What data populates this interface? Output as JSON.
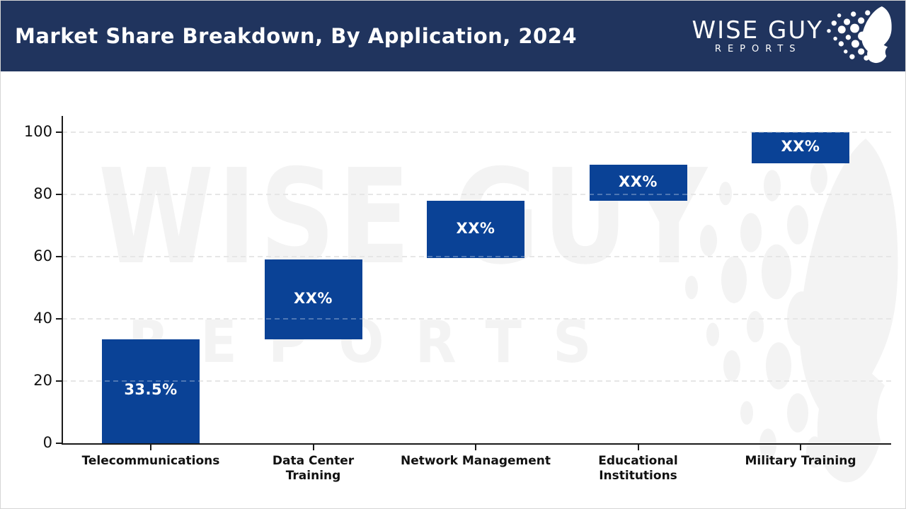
{
  "header": {
    "title": "Market Share Breakdown, By Application, 2024",
    "logo": {
      "name": "WISE GUY",
      "subname": "REPORTS"
    },
    "bg_color": "#20345E"
  },
  "watermark": {
    "line1": "WISE GUY",
    "line2": "REPORTS"
  },
  "chart_data": {
    "type": "bar",
    "subtype": "waterfall",
    "title": "Market Share Breakdown, By Application, 2024",
    "xlabel": "",
    "ylabel": "",
    "ylim": [
      0,
      100
    ],
    "yticks": [
      0,
      20,
      40,
      60,
      80,
      100
    ],
    "grid": "horizontal-dashed",
    "legend": null,
    "categories": [
      {
        "label": "Telecommunications",
        "lines": [
          "Telecommunications"
        ]
      },
      {
        "label": "Data Center Training",
        "lines": [
          "Data Center",
          "Training"
        ]
      },
      {
        "label": "Network Management",
        "lines": [
          "Network Management"
        ]
      },
      {
        "label": "Educational Institutions",
        "lines": [
          "Educational",
          "Institutions"
        ]
      },
      {
        "label": "Military Training",
        "lines": [
          "Military Training"
        ]
      }
    ],
    "bars": [
      {
        "category": "Telecommunications",
        "start": 0,
        "end": 33.5,
        "label": "33.5%"
      },
      {
        "category": "Data Center Training",
        "start": 33.5,
        "end": 59,
        "label": "XX%"
      },
      {
        "category": "Network Management",
        "start": 59.5,
        "end": 78,
        "label": "XX%"
      },
      {
        "category": "Educational Institutions",
        "start": 78,
        "end": 89.5,
        "label": "XX%"
      },
      {
        "category": "Military Training",
        "start": 90,
        "end": 100,
        "label": "XX%"
      }
    ],
    "series": [
      {
        "name": "Market Share",
        "values": [
          33.5,
          25.5,
          18.5,
          11.5,
          10
        ]
      }
    ],
    "colors": {
      "bar": "#0A4296",
      "bar_label": "#FFFFFF",
      "grid": "#DCDCDC",
      "axis": "#1A1A1A",
      "header_bg": "#20345E",
      "header_text": "#FFFFFF",
      "watermark": "#F3F3F3"
    }
  }
}
